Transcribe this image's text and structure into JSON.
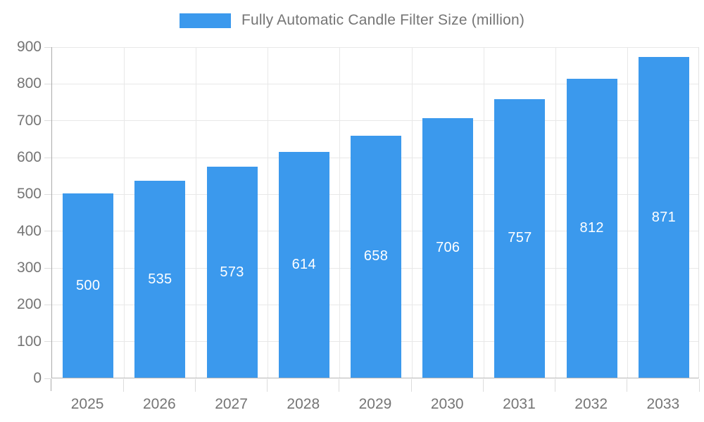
{
  "legend": {
    "label": "Fully Automatic Candle Filter Size (million)"
  },
  "chart_data": {
    "type": "bar",
    "title": "",
    "xlabel": "",
    "ylabel": "",
    "categories": [
      "2025",
      "2026",
      "2027",
      "2028",
      "2029",
      "2030",
      "2031",
      "2032",
      "2033"
    ],
    "series": [
      {
        "name": "Fully Automatic Candle Filter Size (million)",
        "values": [
          500,
          535,
          573,
          614,
          658,
          706,
          757,
          812,
          871
        ]
      }
    ],
    "data_labels": [
      "500",
      "535",
      "573",
      "614",
      "658",
      "706",
      "757",
      "812",
      "871"
    ],
    "ylim": [
      0,
      900
    ],
    "y_ticks": [
      0,
      100,
      200,
      300,
      400,
      500,
      600,
      700,
      800,
      900
    ],
    "grid": true,
    "legend_position": "top-center"
  },
  "colors": {
    "bar": "#3B99ED",
    "bar_value_text": "#ffffff",
    "axis_text": "#757575",
    "legend_text": "#757575",
    "gridline": "#e8e8e8",
    "y_axis_line": "#ababab",
    "x_axis_line": "#b5b5b5",
    "tick": "#dcdcdc",
    "background": "#ffffff"
  }
}
